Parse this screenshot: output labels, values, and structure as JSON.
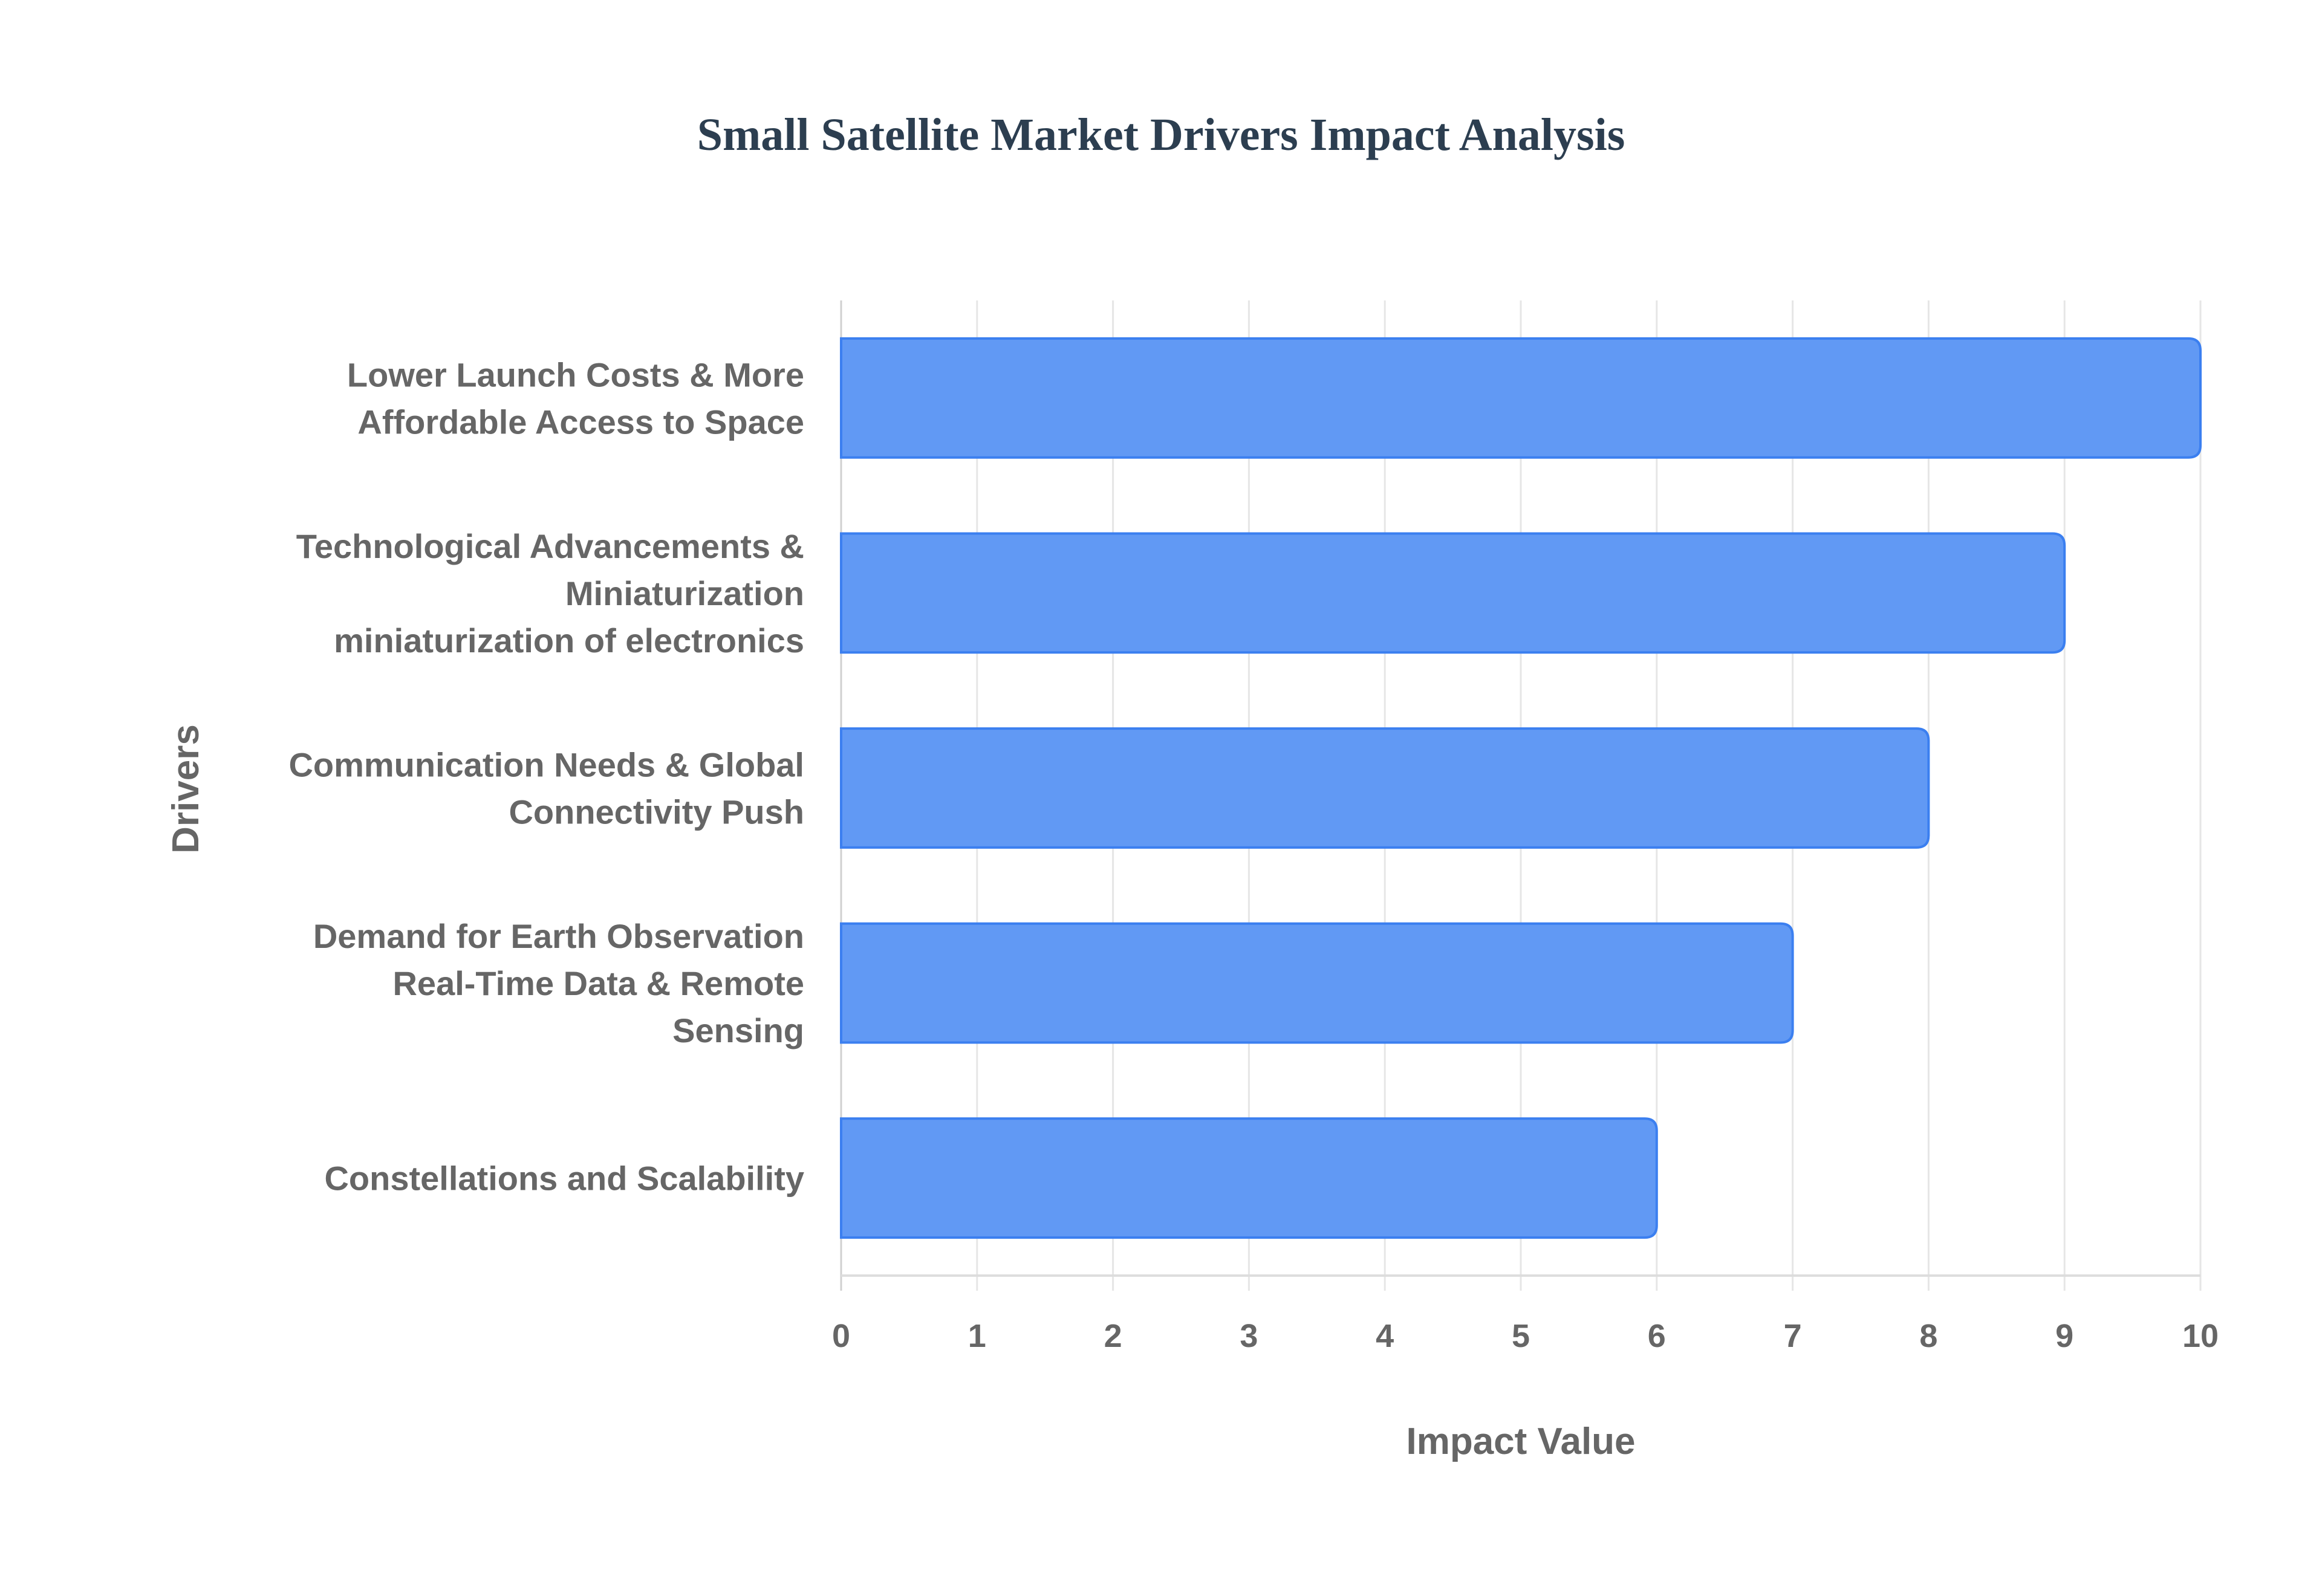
{
  "chart_data": {
    "type": "bar",
    "orientation": "horizontal",
    "title": "Small Satellite Market Drivers Impact Analysis",
    "xlabel": "Impact Value",
    "ylabel": "Drivers",
    "xlim": [
      0,
      10
    ],
    "x_ticks": [
      "0",
      "1",
      "2",
      "3",
      "4",
      "5",
      "6",
      "7",
      "8",
      "9",
      "10"
    ],
    "grid": true,
    "categories": [
      [
        "Lower Launch Costs & More",
        "Affordable Access to Space"
      ],
      [
        "Technological Advancements &",
        "Miniaturization",
        "miniaturization of electronics"
      ],
      [
        "Communication Needs & Global",
        "Connectivity Push"
      ],
      [
        "Demand for Earth Observation",
        "Real-Time Data & Remote",
        "Sensing"
      ],
      [
        "Constellations and Scalability"
      ]
    ],
    "values": [
      10,
      9,
      8,
      7,
      6
    ],
    "colors": {
      "bar_fill": "#6199f4",
      "bar_border": "#3b7ff0",
      "grid": "#e6e6e6",
      "text": "#666666",
      "title": "#2c3e50"
    }
  }
}
